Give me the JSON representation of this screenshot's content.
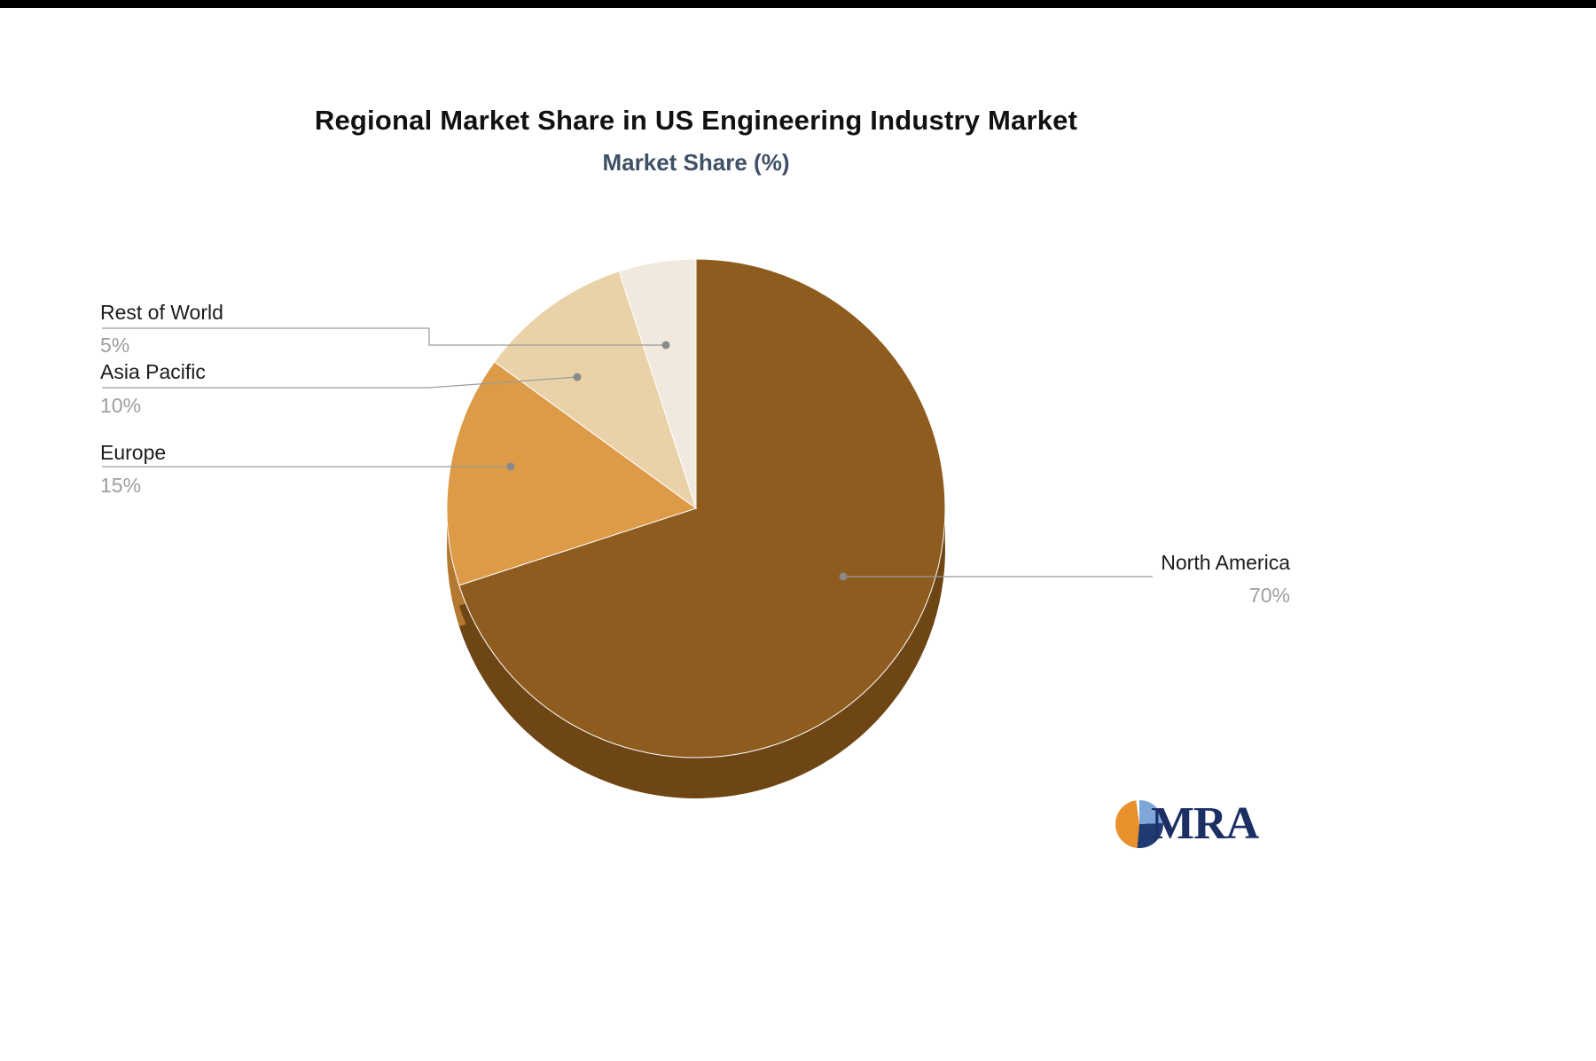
{
  "page": {
    "background": "#ffffff",
    "top_bar_color": "#000000"
  },
  "chart_data": {
    "type": "pie",
    "title": "Regional Market Share in US Engineering Industry Market",
    "subtitle": "Market Share (%)",
    "start_angle_deg": 0,
    "direction": "clockwise",
    "effect": "3d-extruded",
    "legend_position": "callout-labels",
    "grid": false,
    "slices": [
      {
        "label": "North America",
        "value": 70,
        "display": "70%",
        "color": "#8e5c1e",
        "side_color": "#6e4515"
      },
      {
        "label": "Europe",
        "value": 15,
        "display": "15%",
        "color": "#dd9a47",
        "side_color": "#b37930"
      },
      {
        "label": "Asia Pacific",
        "value": 10,
        "display": "10%",
        "color": "#e9d2a8",
        "side_color": "#c4ab80"
      },
      {
        "label": "Rest of World",
        "value": 5,
        "display": "5%",
        "color": "#f2e9de",
        "side_color": "#cdc2b2"
      }
    ],
    "callout_line_color": "#9a9a9a",
    "callout_dot_color": "#8a8a8a",
    "label_color": "#1c1c1c",
    "value_color": "#9e9e9e"
  },
  "logo": {
    "text": "MRA",
    "icon": "pie-chart-icon",
    "colors": {
      "orange": "#e8912d",
      "navy": "#203a72",
      "light_blue": "#7ea6d8",
      "text": "#1b2f63"
    }
  }
}
